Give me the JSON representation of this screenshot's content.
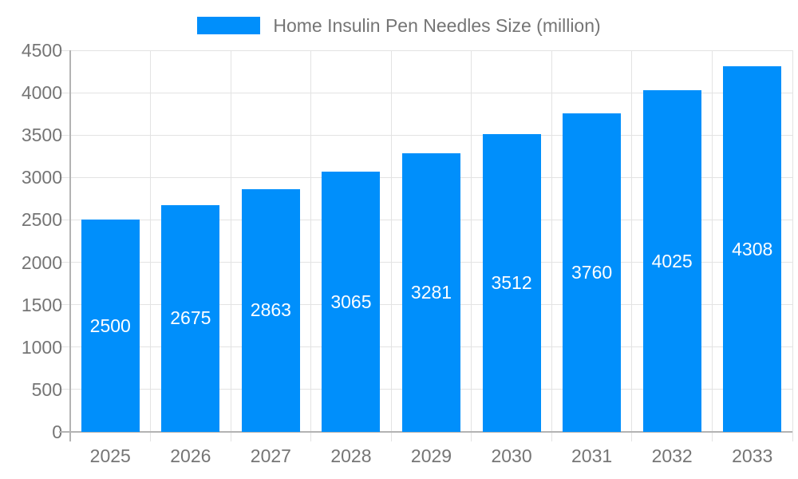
{
  "legend": {
    "label": "Home Insulin Pen Needles Size (million)"
  },
  "chart_data": {
    "type": "bar",
    "title": "Home Insulin Pen Needles Size (million)",
    "categories": [
      "2025",
      "2026",
      "2027",
      "2028",
      "2029",
      "2030",
      "2031",
      "2032",
      "2033"
    ],
    "values": [
      2500,
      2675,
      2863,
      3065,
      3281,
      3512,
      3760,
      4025,
      4308
    ],
    "value_labels": [
      "2500",
      "2675",
      "2863",
      "3065",
      "3281",
      "3512",
      "3760",
      "4025",
      "4308"
    ],
    "xlabel": "",
    "ylabel": "",
    "ylim": [
      0,
      4500
    ],
    "ytick_step": 500,
    "yticks": [
      "0",
      "500",
      "1000",
      "1500",
      "2000",
      "2500",
      "3000",
      "3500",
      "4000",
      "4500"
    ],
    "grid": "both",
    "legend_position": "top",
    "colors": {
      "bar": "#008FFB",
      "gridline": "#e3e3e3",
      "axis": "#b3b3b3",
      "text": "#757575",
      "value_label": "#ffffff",
      "background": "#ffffff"
    }
  }
}
